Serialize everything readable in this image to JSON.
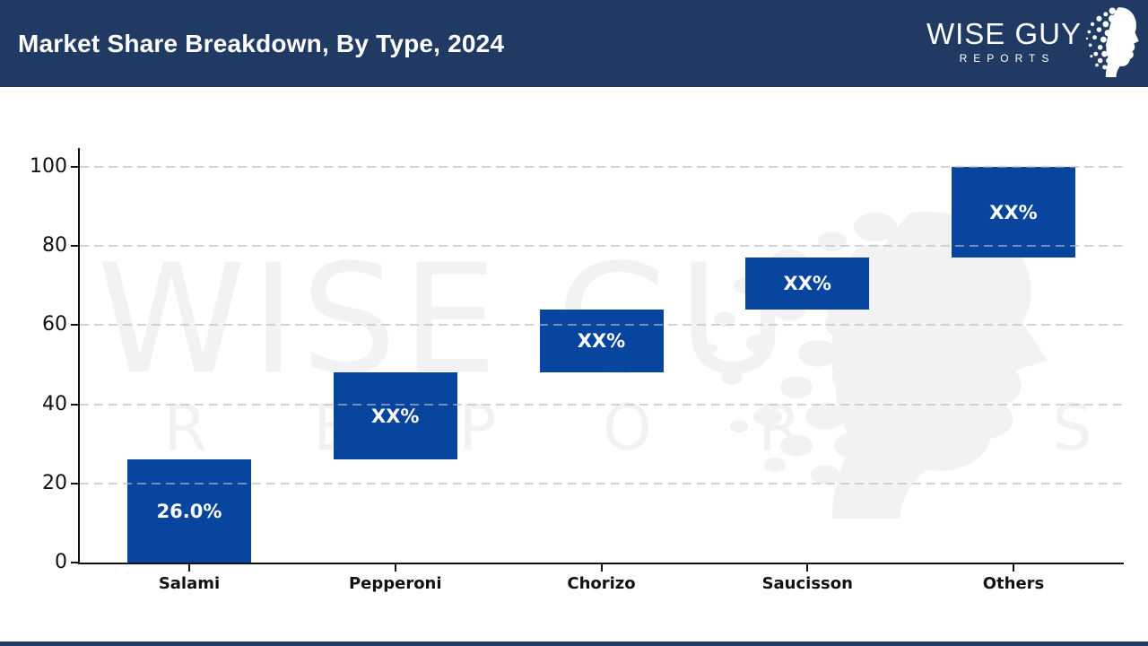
{
  "header": {
    "bg_color": "#213a64",
    "logo": {
      "line1": "WISE GUY",
      "line2": "REPORTS"
    }
  },
  "watermark": {
    "line1": "WISE GUY",
    "line2": "REPORTS"
  },
  "footer": {
    "bg_color": "#213a64"
  },
  "chart_data": {
    "type": "bar",
    "subtype": "waterfall",
    "title": "Market Share Breakdown, By Type, 2024",
    "categories": [
      "Salami",
      "Pepperoni",
      "Chorizo",
      "Saucisson",
      "Others"
    ],
    "segments": [
      {
        "start": 0,
        "end": 26,
        "label": "26.0%"
      },
      {
        "start": 26,
        "end": 48,
        "label": "XX%"
      },
      {
        "start": 48,
        "end": 64,
        "label": "XX%"
      },
      {
        "start": 64,
        "end": 77,
        "label": "XX%"
      },
      {
        "start": 77,
        "end": 100,
        "label": "XX%"
      }
    ],
    "xlabel": "",
    "ylabel": "",
    "ylim": [
      0,
      100
    ],
    "yticks": [
      0,
      20,
      40,
      60,
      80,
      100
    ],
    "grid": "horizontal-dashed",
    "legend": "none",
    "bar_color": "#08459e",
    "bar_label_color": "#ffffff"
  }
}
